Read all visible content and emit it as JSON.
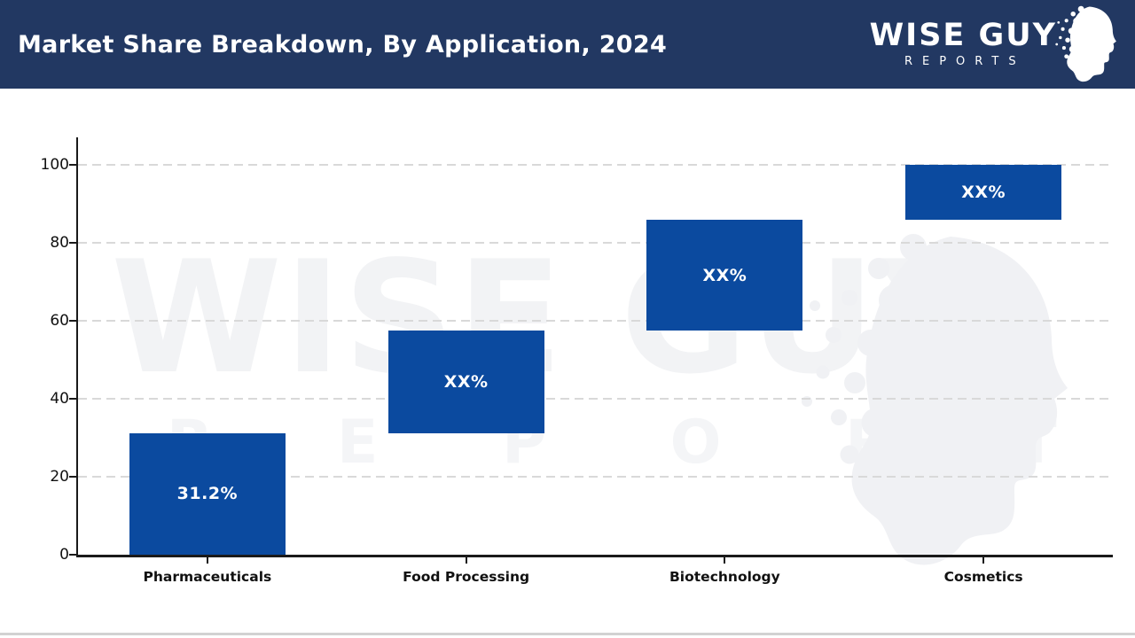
{
  "header": {
    "title": "Market Share Breakdown, By Application, 2024",
    "bg_color": "#223862",
    "logo": {
      "line1": "WISE GUY",
      "line2": "REPORTS"
    }
  },
  "watermark": {
    "line1": "WISE GUY",
    "line2": "REPORTS"
  },
  "chart_data": {
    "type": "bar",
    "subtype": "waterfall",
    "title": "Market Share Breakdown, By Application, 2024",
    "categories": [
      "Pharmaceuticals",
      "Food Processing",
      "Biotechnology",
      "Cosmetics"
    ],
    "segments": [
      {
        "category": "Pharmaceuticals",
        "start": 0,
        "end": 31.2,
        "label": "31.2%"
      },
      {
        "category": "Food Processing",
        "start": 31.2,
        "end": 57.4,
        "label": "XX%"
      },
      {
        "category": "Biotechnology",
        "start": 57.4,
        "end": 85.8,
        "label": "XX%"
      },
      {
        "category": "Cosmetics",
        "start": 85.8,
        "end": 100,
        "label": "XX%"
      }
    ],
    "yticks": [
      0,
      20,
      40,
      60,
      80,
      100
    ],
    "ylim": [
      0,
      107
    ],
    "xlabel": "",
    "ylabel": "",
    "grid": "horizontal-dashed",
    "legend": "none",
    "bar_color": "#0b4a9f",
    "axis_color": "#1a1a1a",
    "grid_color": "#d9d9d9",
    "label_color": "#ffffff"
  }
}
